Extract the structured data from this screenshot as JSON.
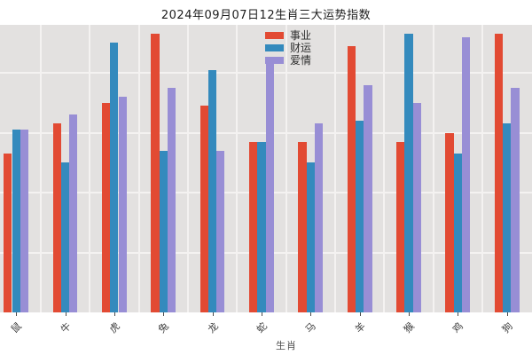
{
  "title": "2024年09月07日12生肖三大运势指数",
  "legend": [
    {
      "label": "事业",
      "color": "#e24a33"
    },
    {
      "label": "财运",
      "color": "#348abd"
    },
    {
      "label": "爱情",
      "color": "#988ed5"
    }
  ],
  "xaxis_title": "生肖",
  "colors": {
    "plot_background": "#e3e1e0",
    "gridline": "#f4f2f1",
    "career_red": "#e24a33",
    "wealth_blue": "#348abd",
    "love_purple": "#988ed5"
  },
  "chart_data": {
    "type": "bar",
    "title": "2024年09月07日12生肖三大运势指数",
    "xlabel": "生肖",
    "ylabel": "",
    "categories": [
      "鼠",
      "牛",
      "虎",
      "兔",
      "龙",
      "蛇",
      "马",
      "羊",
      "猴",
      "鸡",
      "狗"
    ],
    "series": [
      {
        "name": "事业",
        "color": "#e24a33",
        "values": [
          53,
          63,
          70,
          93,
          69,
          57,
          57,
          89,
          57,
          60,
          93
        ]
      },
      {
        "name": "财运",
        "color": "#348abd",
        "values": [
          61,
          50,
          90,
          54,
          81,
          57,
          50,
          64,
          93,
          53,
          63
        ]
      },
      {
        "name": "爱情",
        "color": "#988ed5",
        "values": [
          61,
          66,
          72,
          75,
          54,
          83,
          63,
          76,
          70,
          92,
          75
        ]
      }
    ],
    "ylim": [
      0,
      96
    ],
    "ytick_step": 20,
    "grid": true,
    "legend_position": "upper center",
    "x_tick_rotation": 45
  }
}
